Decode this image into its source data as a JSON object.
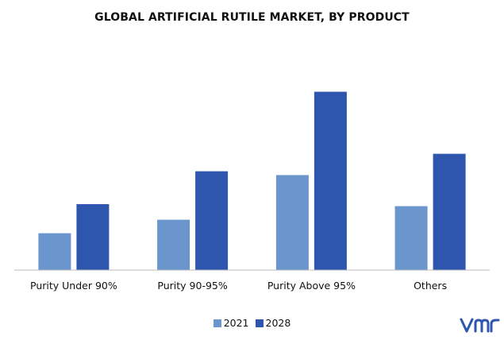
{
  "chart_data": {
    "type": "bar",
    "title": "GLOBAL ARTIFICIAL RUTILE MARKET, BY PRODUCT",
    "categories": [
      "Purity Under 90%",
      "Purity 90-95%",
      "Purity Above 95%",
      "Others"
    ],
    "series": [
      {
        "name": "2021",
        "values": [
          1.9,
          2.6,
          4.9,
          3.3
        ],
        "color": "#6A95CD"
      },
      {
        "name": "2028",
        "values": [
          3.4,
          5.1,
          9.2,
          6.0
        ],
        "color": "#2E56AF"
      }
    ],
    "ylim": [
      0,
      10
    ],
    "grid": false,
    "legend_position": "bottom-center"
  },
  "logo": {
    "icon": "vmr-logo-icon",
    "color": "#2E56AF"
  }
}
